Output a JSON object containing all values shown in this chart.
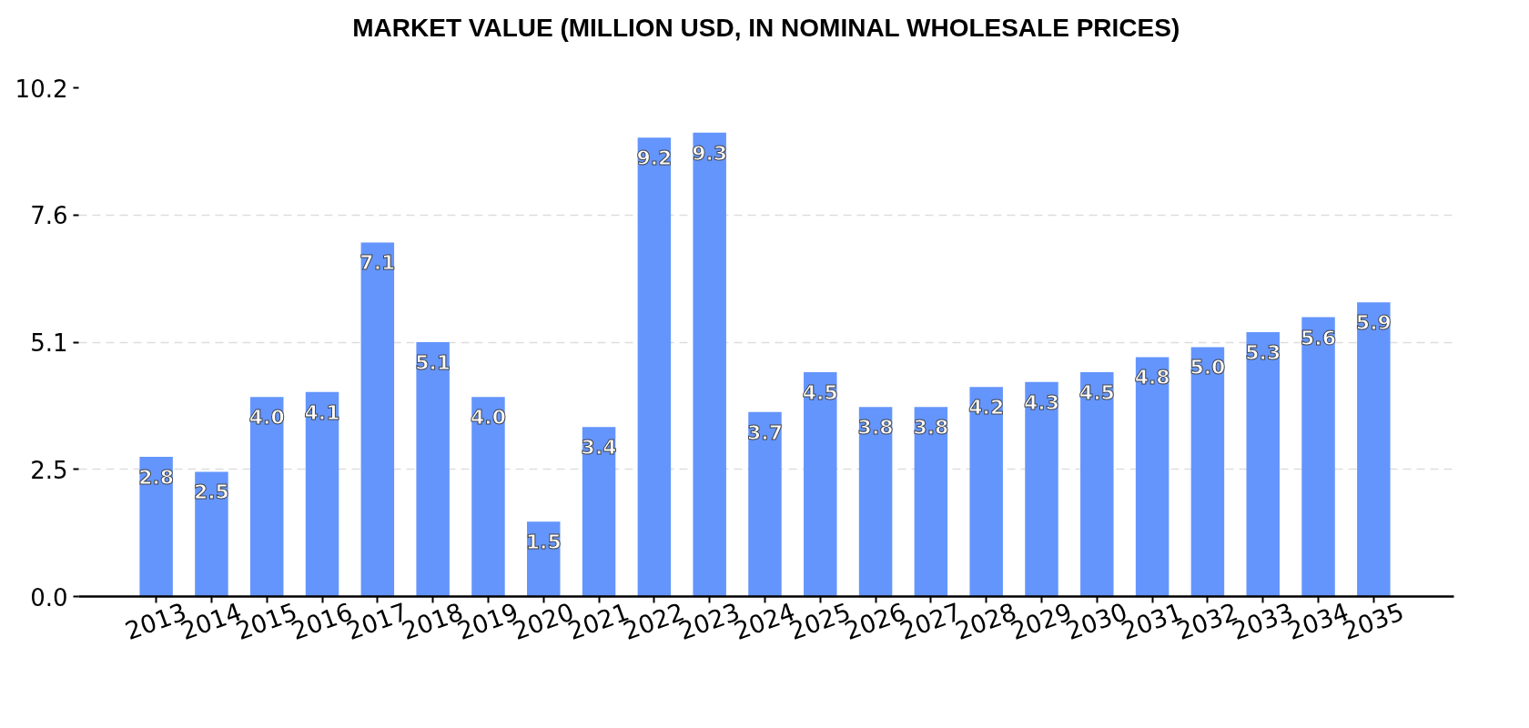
{
  "chart_data": {
    "type": "bar",
    "title": "MARKET VALUE (MILLION USD, IN NOMINAL WHOLESALE PRICES)",
    "categories": [
      "2013",
      "2014",
      "2015",
      "2016",
      "2017",
      "2018",
      "2019",
      "2020",
      "2021",
      "2022",
      "2023",
      "2024",
      "2025",
      "2026",
      "2027",
      "2028",
      "2029",
      "2030",
      "2031",
      "2032",
      "2033",
      "2034",
      "2035"
    ],
    "values": [
      2.8,
      2.5,
      4.0,
      4.1,
      7.1,
      5.1,
      4.0,
      1.5,
      3.4,
      9.2,
      9.3,
      3.7,
      4.5,
      3.8,
      3.8,
      4.2,
      4.3,
      4.5,
      4.8,
      5.0,
      5.3,
      5.6,
      5.9
    ],
    "value_labels": [
      "2.8",
      "2.5",
      "4.0",
      "4.1",
      "7.1",
      "5.1",
      "4.0",
      "1.5",
      "3.4",
      "9.2",
      "9.3",
      "3.7",
      "4.5",
      "3.8",
      "3.8",
      "4.2",
      "4.3",
      "4.5",
      "4.8",
      "5.0",
      "5.3",
      "5.6",
      "5.9"
    ],
    "color": "#6495fd",
    "ylim": [
      0,
      10.2
    ],
    "yticks": [
      {
        "value": 0,
        "label": "0.0"
      },
      {
        "value": 2.55,
        "label": "2.5"
      },
      5.1,
      {
        "value": 7.65,
        "label": "7.6"
      },
      10.2
    ],
    "grid": "y"
  }
}
